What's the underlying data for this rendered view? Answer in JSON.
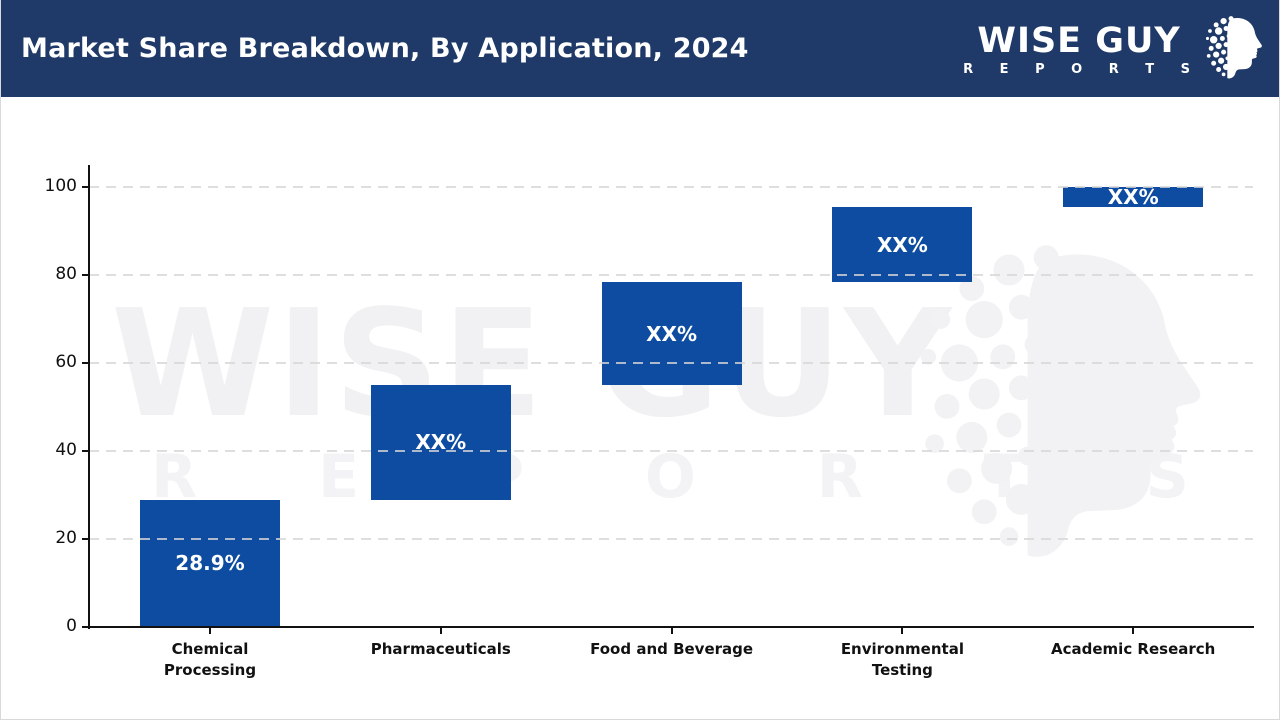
{
  "header": {
    "title": "Market Share Breakdown, By Application, 2024",
    "logo": {
      "line1": "WISE GUY",
      "line2": "R E P O R T S"
    }
  },
  "watermark": {
    "line1": "WISE GUY",
    "line2": "R E P O R T S"
  },
  "chart_data": {
    "type": "bar",
    "subtype": "waterfall-stacked-floating-bars",
    "title": "Market Share Breakdown, By Application, 2024",
    "categories": [
      "Chemical\nProcessing",
      "Pharmaceuticals",
      "Food and Beverage",
      "Environmental\nTesting",
      "Academic Research"
    ],
    "segments": [
      {
        "category": "Chemical Processing",
        "label": "28.9%",
        "start": 0,
        "end": 28.9
      },
      {
        "category": "Pharmaceuticals",
        "label": "XX%",
        "start": 28.9,
        "end": 55.0
      },
      {
        "category": "Food and Beverage",
        "label": "XX%",
        "start": 55.0,
        "end": 78.3
      },
      {
        "category": "Environmental Testing",
        "label": "XX%",
        "start": 78.3,
        "end": 95.5
      },
      {
        "category": "Academic Research",
        "label": "XX%",
        "start": 95.5,
        "end": 100
      }
    ],
    "yticks": [
      0,
      20,
      40,
      60,
      80,
      100
    ],
    "ylim": [
      0,
      105
    ],
    "xlabel": "",
    "ylabel": "",
    "grid": "horizontal-dashed",
    "legend": "none",
    "bar_color": "#0d4ca0",
    "bar_label_color": "#ffffff",
    "header_bg_color": "#1f3a68",
    "grid_color": "#d6d6d6",
    "axis_color": "#111111",
    "watermark_color": "#f1f1f3"
  }
}
